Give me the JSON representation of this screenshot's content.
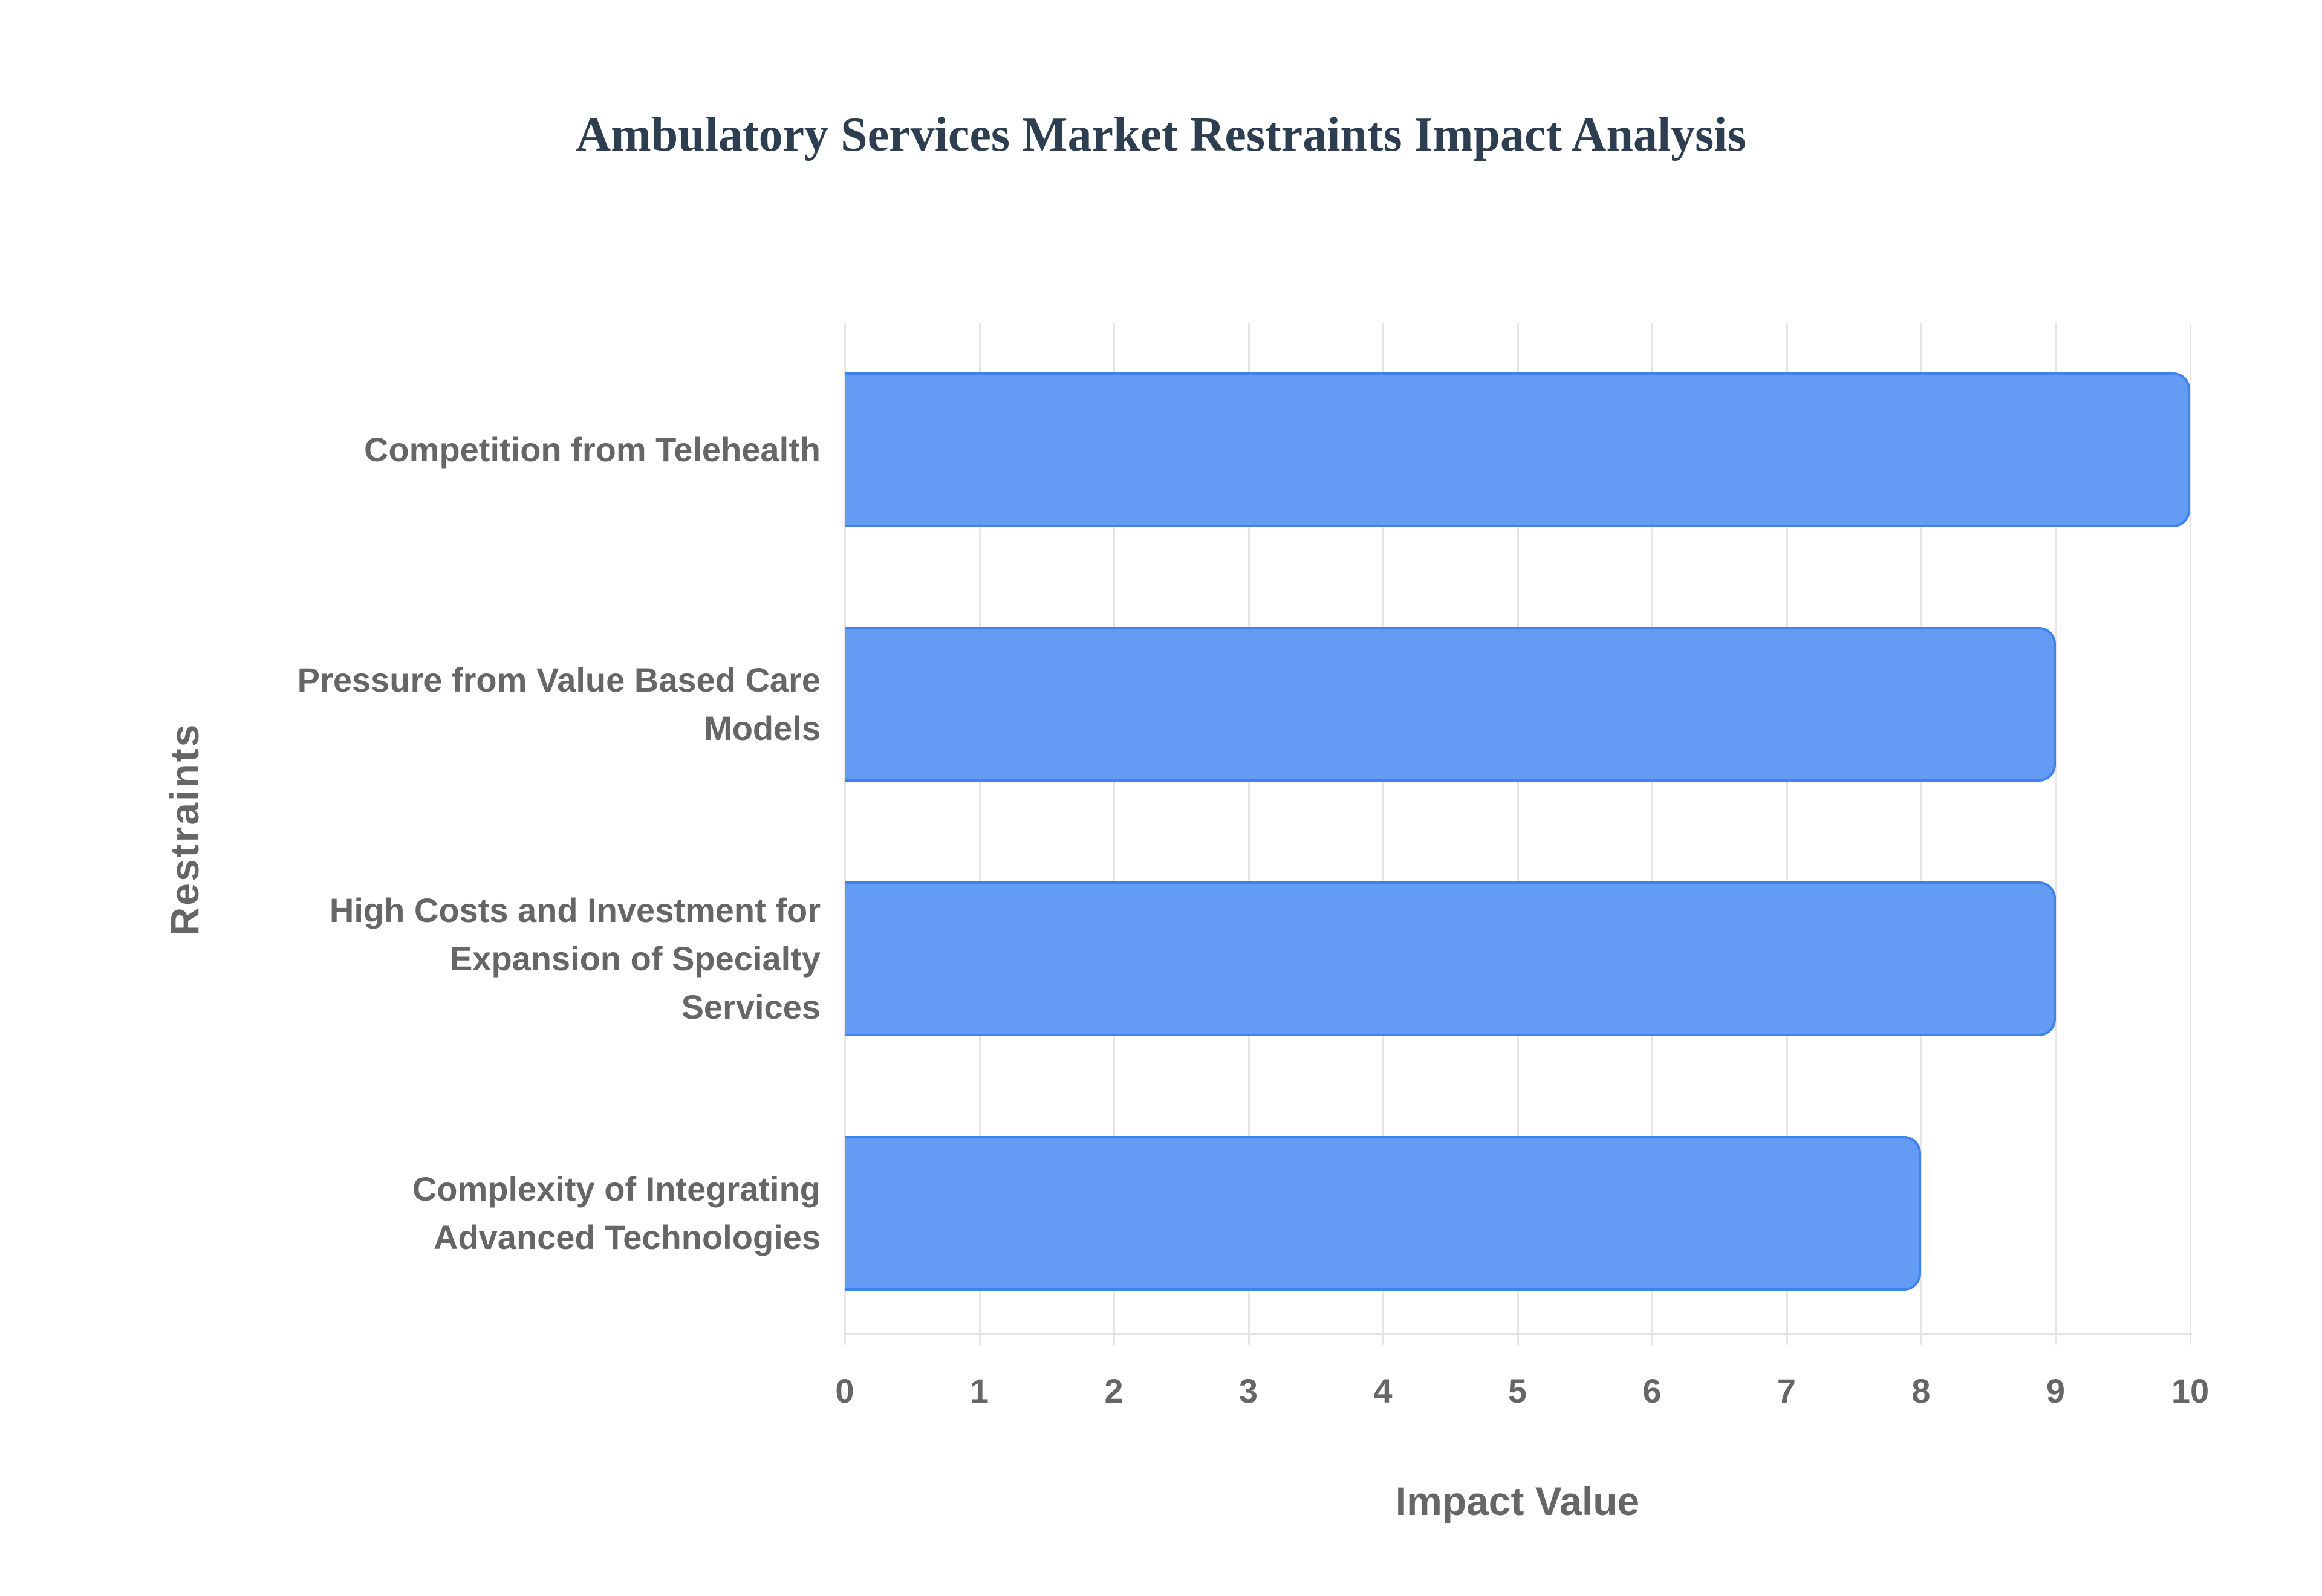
{
  "chart_data": {
    "type": "bar",
    "orientation": "horizontal",
    "title": "Ambulatory Services Market Restraints Impact Analysis",
    "xlabel": "Impact Value",
    "ylabel": "Restraints",
    "categories": [
      "Competition from Telehealth",
      "Pressure from Value Based Care Models",
      "High Costs and Investment for Expansion of Specialty Services",
      "Complexity of Integrating Advanced Technologies"
    ],
    "category_lines": [
      [
        "Competition from Telehealth"
      ],
      [
        "Pressure from Value Based Care",
        "Models"
      ],
      [
        "High Costs and Investment for",
        "Expansion of Specialty",
        "Services"
      ],
      [
        "Complexity of Integrating",
        "Advanced Technologies"
      ]
    ],
    "values": [
      10,
      9,
      9,
      8
    ],
    "xlim": [
      0,
      10
    ],
    "xticks": [
      "0",
      "1",
      "2",
      "3",
      "4",
      "5",
      "6",
      "7",
      "8",
      "9",
      "10"
    ],
    "grid": true,
    "legend": null,
    "colors": {
      "bar_fill": "#639bf5",
      "bar_border": "#3f82ef",
      "title": "#2c3e50",
      "axis_text": "#666666",
      "grid": "#e6e6e6"
    }
  }
}
